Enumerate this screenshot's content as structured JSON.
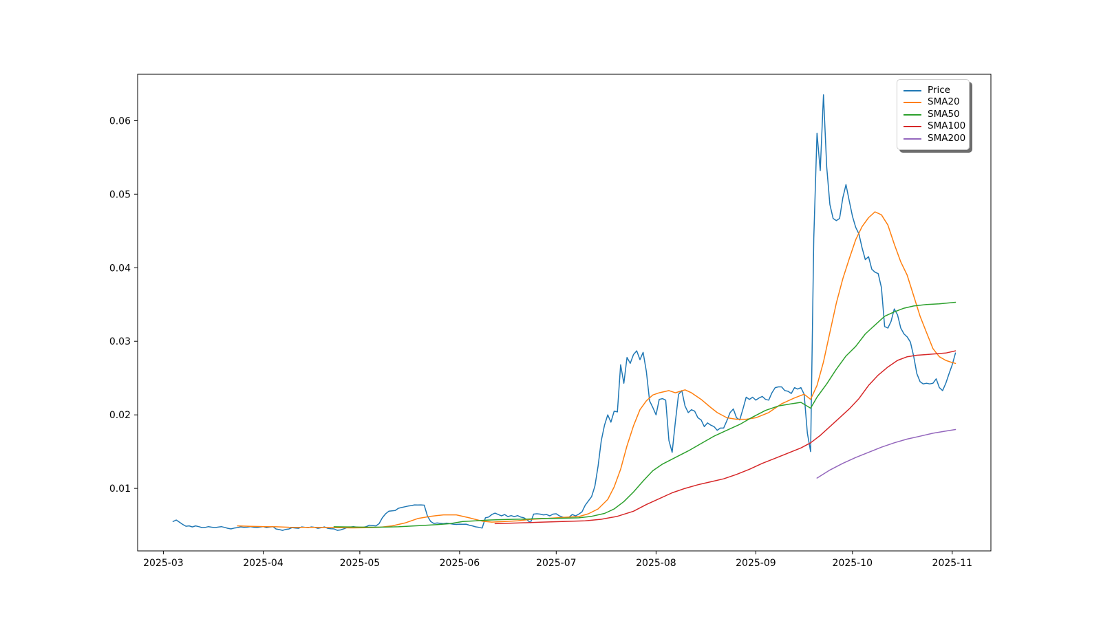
{
  "figure": {
    "background": "#ffffff",
    "spine_color": "#000000",
    "tick_color": "#000000",
    "text_color": "#000000"
  },
  "chart_data": {
    "type": "line",
    "title": "",
    "xlabel": "",
    "ylabel": "",
    "grid": false,
    "legend": {
      "position": "upper right",
      "entries": [
        "Price",
        "SMA20",
        "SMA50",
        "SMA100",
        "SMA200"
      ]
    },
    "x_axis": {
      "min_date": "2025-02-21",
      "max_date": "2025-11-13",
      "ticks": [
        {
          "date": "2025-03-01",
          "label": "2025-03"
        },
        {
          "date": "2025-04-01",
          "label": "2025-04"
        },
        {
          "date": "2025-05-01",
          "label": "2025-05"
        },
        {
          "date": "2025-06-01",
          "label": "2025-06"
        },
        {
          "date": "2025-07-01",
          "label": "2025-07"
        },
        {
          "date": "2025-08-01",
          "label": "2025-08"
        },
        {
          "date": "2025-09-01",
          "label": "2025-09"
        },
        {
          "date": "2025-10-01",
          "label": "2025-10"
        },
        {
          "date": "2025-11-01",
          "label": "2025-11"
        }
      ]
    },
    "y_axis": {
      "ylim": [
        0.0015,
        0.0663
      ],
      "ticks": [
        0.01,
        0.02,
        0.03,
        0.04,
        0.05,
        0.06
      ]
    },
    "series": [
      {
        "name": "Price",
        "color": "#1f77b4",
        "daily": {
          "start": "2025-03-04",
          "values": [
            0.0055,
            0.0057,
            0.0054,
            0.0051,
            0.00486,
            0.0049,
            0.00476,
            0.0049,
            0.0048,
            0.00467,
            0.0047,
            0.0048,
            0.00473,
            0.00467,
            0.00474,
            0.0048,
            0.0047,
            0.00458,
            0.00449,
            0.0046,
            0.00467,
            0.00476,
            0.0047,
            0.00473,
            0.0048,
            0.00472,
            0.00467,
            0.00474,
            0.0048,
            0.00467,
            0.00474,
            0.0048,
            0.00448,
            0.0044,
            0.0043,
            0.00442,
            0.00448,
            0.00467,
            0.0046,
            0.00458,
            0.00476,
            0.0047,
            0.00467,
            0.00476,
            0.0047,
            0.00458,
            0.00465,
            0.00476,
            0.00458,
            0.00452,
            0.00449,
            0.0043,
            0.00435,
            0.0045,
            0.00467,
            0.00474,
            0.0048,
            0.00474,
            0.00467,
            0.0047,
            0.0048,
            0.005,
            0.00495,
            0.0049,
            0.0052,
            0.006,
            0.00654,
            0.0069,
            0.00695,
            0.007,
            0.0073,
            0.0074,
            0.0075,
            0.0076,
            0.00766,
            0.00776,
            0.00774,
            0.00776,
            0.00772,
            0.00626,
            0.00551,
            0.00523,
            0.0053,
            0.00525,
            0.0052,
            0.00528,
            0.0052,
            0.00514,
            0.0051,
            0.00514,
            0.00512,
            0.00514,
            0.005,
            0.0049,
            0.00477,
            0.0047,
            0.0046,
            0.006,
            0.0061,
            0.00645,
            0.00664,
            0.00645,
            0.00626,
            0.00645,
            0.00617,
            0.0063,
            0.00617,
            0.0063,
            0.0061,
            0.006,
            0.0057,
            0.00533,
            0.0065,
            0.00655,
            0.0065,
            0.0064,
            0.00645,
            0.00626,
            0.0065,
            0.00655,
            0.00626,
            0.0061,
            0.006,
            0.0061,
            0.00645,
            0.00626,
            0.0065,
            0.0068,
            0.0077,
            0.0083,
            0.0089,
            0.0103,
            0.013,
            0.0165,
            0.0186,
            0.02,
            0.019,
            0.0205,
            0.0204,
            0.0268,
            0.0243,
            0.0278,
            0.027,
            0.0282,
            0.0287,
            0.0275,
            0.0285,
            0.0259,
            0.0219,
            0.021,
            0.02,
            0.0221,
            0.0222,
            0.022,
            0.0165,
            0.0149,
            0.019,
            0.0228,
            0.0233,
            0.0212,
            0.0203,
            0.0207,
            0.0205,
            0.0196,
            0.0193,
            0.0184,
            0.0189,
            0.0186,
            0.0184,
            0.0179,
            0.0182,
            0.0182,
            0.0192,
            0.0203,
            0.0208,
            0.0196,
            0.0193,
            0.0208,
            0.0224,
            0.0221,
            0.0224,
            0.022,
            0.0223,
            0.0225,
            0.0221,
            0.022,
            0.023,
            0.0237,
            0.0238,
            0.0238,
            0.0233,
            0.0232,
            0.0229,
            0.0237,
            0.0235,
            0.0237,
            0.0228,
            0.0175,
            0.015,
            0.044,
            0.0583,
            0.0532,
            0.0635,
            0.0537,
            0.0486,
            0.0467,
            0.0464,
            0.0467,
            0.0495,
            0.0513,
            0.0491,
            0.047,
            0.0455,
            0.0446,
            0.0427,
            0.0411,
            0.0415,
            0.0398,
            0.0394,
            0.0392,
            0.0373,
            0.032,
            0.0318,
            0.0327,
            0.0344,
            0.0336,
            0.0318,
            0.031,
            0.0306,
            0.0299,
            0.028,
            0.0256,
            0.0245,
            0.0242,
            0.0243,
            0.0242,
            0.0243,
            0.0249,
            0.0237,
            0.0233,
            0.0243,
            0.0256,
            0.0268,
            0.0284
          ]
        }
      },
      {
        "name": "SMA20",
        "color": "#ff7f0e",
        "points": [
          [
            "2025-03-24",
            0.0049
          ],
          [
            "2025-03-28",
            0.00485
          ],
          [
            "2025-04-01",
            0.0048
          ],
          [
            "2025-04-05",
            0.00478
          ],
          [
            "2025-04-09",
            0.00472
          ],
          [
            "2025-04-13",
            0.0047
          ],
          [
            "2025-04-17",
            0.0047
          ],
          [
            "2025-04-21",
            0.00468
          ],
          [
            "2025-04-25",
            0.00465
          ],
          [
            "2025-04-29",
            0.00463
          ],
          [
            "2025-05-03",
            0.00465
          ],
          [
            "2025-05-07",
            0.0047
          ],
          [
            "2025-05-11",
            0.0049
          ],
          [
            "2025-05-15",
            0.0053
          ],
          [
            "2025-05-19",
            0.0059
          ],
          [
            "2025-05-23",
            0.0062
          ],
          [
            "2025-05-27",
            0.0064
          ],
          [
            "2025-05-31",
            0.0064
          ],
          [
            "2025-06-04",
            0.006
          ],
          [
            "2025-06-08",
            0.00555
          ],
          [
            "2025-06-11",
            0.00542
          ],
          [
            "2025-06-15",
            0.0055
          ],
          [
            "2025-06-19",
            0.0056
          ],
          [
            "2025-06-23",
            0.00579
          ],
          [
            "2025-06-27",
            0.00589
          ],
          [
            "2025-07-01",
            0.006
          ],
          [
            "2025-07-05",
            0.0061
          ],
          [
            "2025-07-08",
            0.00617
          ],
          [
            "2025-07-11",
            0.00655
          ],
          [
            "2025-07-14",
            0.0072
          ],
          [
            "2025-07-17",
            0.0085
          ],
          [
            "2025-07-19",
            0.0102
          ],
          [
            "2025-07-21",
            0.0126
          ],
          [
            "2025-07-23",
            0.0158
          ],
          [
            "2025-07-25",
            0.0185
          ],
          [
            "2025-07-27",
            0.0207
          ],
          [
            "2025-07-29",
            0.0219
          ],
          [
            "2025-07-31",
            0.0227
          ],
          [
            "2025-08-02",
            0.023
          ],
          [
            "2025-08-05",
            0.0233
          ],
          [
            "2025-08-07",
            0.023
          ],
          [
            "2025-08-10",
            0.0234
          ],
          [
            "2025-08-12",
            0.023
          ],
          [
            "2025-08-15",
            0.0221
          ],
          [
            "2025-08-18",
            0.021
          ],
          [
            "2025-08-20",
            0.0203
          ],
          [
            "2025-08-23",
            0.0196
          ],
          [
            "2025-08-26",
            0.0194
          ],
          [
            "2025-08-29",
            0.0194
          ],
          [
            "2025-09-01",
            0.0196
          ],
          [
            "2025-09-05",
            0.0203
          ],
          [
            "2025-09-09",
            0.0215
          ],
          [
            "2025-09-13",
            0.0223
          ],
          [
            "2025-09-16",
            0.0228
          ],
          [
            "2025-09-18",
            0.0221
          ],
          [
            "2025-09-20",
            0.024
          ],
          [
            "2025-09-22",
            0.0272
          ],
          [
            "2025-09-24",
            0.0312
          ],
          [
            "2025-09-26",
            0.0352
          ],
          [
            "2025-09-28",
            0.0385
          ],
          [
            "2025-09-30",
            0.0412
          ],
          [
            "2025-10-02",
            0.0438
          ],
          [
            "2025-10-04",
            0.0456
          ],
          [
            "2025-10-06",
            0.0468
          ],
          [
            "2025-10-08",
            0.0476
          ],
          [
            "2025-10-10",
            0.0472
          ],
          [
            "2025-10-12",
            0.0458
          ],
          [
            "2025-10-14",
            0.0432
          ],
          [
            "2025-10-16",
            0.0408
          ],
          [
            "2025-10-18",
            0.039
          ],
          [
            "2025-10-20",
            0.0362
          ],
          [
            "2025-10-22",
            0.0334
          ],
          [
            "2025-10-24",
            0.0312
          ],
          [
            "2025-10-26",
            0.029
          ],
          [
            "2025-10-28",
            0.0279
          ],
          [
            "2025-10-30",
            0.0274
          ],
          [
            "2025-11-01",
            0.0271
          ],
          [
            "2025-11-02",
            0.027
          ]
        ]
      },
      {
        "name": "SMA50",
        "color": "#2ca02c",
        "points": [
          [
            "2025-04-23",
            0.00478
          ],
          [
            "2025-04-27",
            0.00476
          ],
          [
            "2025-05-01",
            0.00474
          ],
          [
            "2025-05-05",
            0.00473
          ],
          [
            "2025-05-09",
            0.00474
          ],
          [
            "2025-05-13",
            0.00478
          ],
          [
            "2025-05-17",
            0.00488
          ],
          [
            "2025-05-21",
            0.00497
          ],
          [
            "2025-05-25",
            0.00508
          ],
          [
            "2025-05-29",
            0.0052
          ],
          [
            "2025-06-02",
            0.0055
          ],
          [
            "2025-06-06",
            0.0056
          ],
          [
            "2025-06-10",
            0.0057
          ],
          [
            "2025-06-14",
            0.00575
          ],
          [
            "2025-06-18",
            0.0058
          ],
          [
            "2025-06-22",
            0.00583
          ],
          [
            "2025-06-26",
            0.0059
          ],
          [
            "2025-06-30",
            0.00592
          ],
          [
            "2025-07-04",
            0.00595
          ],
          [
            "2025-07-08",
            0.006
          ],
          [
            "2025-07-12",
            0.0062
          ],
          [
            "2025-07-16",
            0.0066
          ],
          [
            "2025-07-19",
            0.0072
          ],
          [
            "2025-07-22",
            0.0082
          ],
          [
            "2025-07-25",
            0.0095
          ],
          [
            "2025-07-28",
            0.011
          ],
          [
            "2025-07-31",
            0.0124
          ],
          [
            "2025-08-03",
            0.0133
          ],
          [
            "2025-08-07",
            0.0142
          ],
          [
            "2025-08-11",
            0.0151
          ],
          [
            "2025-08-15",
            0.0161
          ],
          [
            "2025-08-19",
            0.0171
          ],
          [
            "2025-08-23",
            0.0179
          ],
          [
            "2025-08-27",
            0.0187
          ],
          [
            "2025-08-31",
            0.0197
          ],
          [
            "2025-09-04",
            0.0206
          ],
          [
            "2025-09-08",
            0.0212
          ],
          [
            "2025-09-12",
            0.0215
          ],
          [
            "2025-09-15",
            0.0217
          ],
          [
            "2025-09-18",
            0.0209
          ],
          [
            "2025-09-20",
            0.0224
          ],
          [
            "2025-09-23",
            0.0242
          ],
          [
            "2025-09-26",
            0.0262
          ],
          [
            "2025-09-29",
            0.028
          ],
          [
            "2025-10-02",
            0.0293
          ],
          [
            "2025-10-05",
            0.031
          ],
          [
            "2025-10-08",
            0.0322
          ],
          [
            "2025-10-11",
            0.0334
          ],
          [
            "2025-10-14",
            0.034
          ],
          [
            "2025-10-17",
            0.0345
          ],
          [
            "2025-10-20",
            0.0348
          ],
          [
            "2025-10-24",
            0.035
          ],
          [
            "2025-10-28",
            0.0351
          ],
          [
            "2025-11-02",
            0.0353
          ]
        ]
      },
      {
        "name": "SMA100",
        "color": "#d62728",
        "points": [
          [
            "2025-06-12",
            0.0052
          ],
          [
            "2025-06-19",
            0.0053
          ],
          [
            "2025-06-26",
            0.0054
          ],
          [
            "2025-07-03",
            0.0055
          ],
          [
            "2025-07-10",
            0.0056
          ],
          [
            "2025-07-15",
            0.0058
          ],
          [
            "2025-07-20",
            0.0062
          ],
          [
            "2025-07-25",
            0.0069
          ],
          [
            "2025-07-29",
            0.0078
          ],
          [
            "2025-08-02",
            0.0086
          ],
          [
            "2025-08-06",
            0.0094
          ],
          [
            "2025-08-10",
            0.01
          ],
          [
            "2025-08-14",
            0.0105
          ],
          [
            "2025-08-18",
            0.0109
          ],
          [
            "2025-08-22",
            0.0113
          ],
          [
            "2025-08-26",
            0.0119
          ],
          [
            "2025-08-30",
            0.0126
          ],
          [
            "2025-09-03",
            0.0134
          ],
          [
            "2025-09-07",
            0.0141
          ],
          [
            "2025-09-11",
            0.0148
          ],
          [
            "2025-09-15",
            0.0155
          ],
          [
            "2025-09-18",
            0.0162
          ],
          [
            "2025-09-21",
            0.0172
          ],
          [
            "2025-09-24",
            0.0184
          ],
          [
            "2025-09-27",
            0.0196
          ],
          [
            "2025-09-30",
            0.0208
          ],
          [
            "2025-10-03",
            0.0222
          ],
          [
            "2025-10-06",
            0.024
          ],
          [
            "2025-10-09",
            0.0254
          ],
          [
            "2025-10-12",
            0.0265
          ],
          [
            "2025-10-15",
            0.0274
          ],
          [
            "2025-10-18",
            0.0279
          ],
          [
            "2025-10-21",
            0.0281
          ],
          [
            "2025-10-24",
            0.0282
          ],
          [
            "2025-10-27",
            0.0283
          ],
          [
            "2025-10-30",
            0.0284
          ],
          [
            "2025-11-02",
            0.0287
          ]
        ]
      },
      {
        "name": "SMA200",
        "color": "#9467bd",
        "points": [
          [
            "2025-09-20",
            0.0114
          ],
          [
            "2025-09-24",
            0.0125
          ],
          [
            "2025-09-28",
            0.0134
          ],
          [
            "2025-10-02",
            0.0142
          ],
          [
            "2025-10-06",
            0.0149
          ],
          [
            "2025-10-10",
            0.0156
          ],
          [
            "2025-10-14",
            0.0162
          ],
          [
            "2025-10-18",
            0.0167
          ],
          [
            "2025-10-22",
            0.0171
          ],
          [
            "2025-10-26",
            0.0175
          ],
          [
            "2025-10-30",
            0.0178
          ],
          [
            "2025-11-02",
            0.018
          ]
        ]
      }
    ]
  }
}
